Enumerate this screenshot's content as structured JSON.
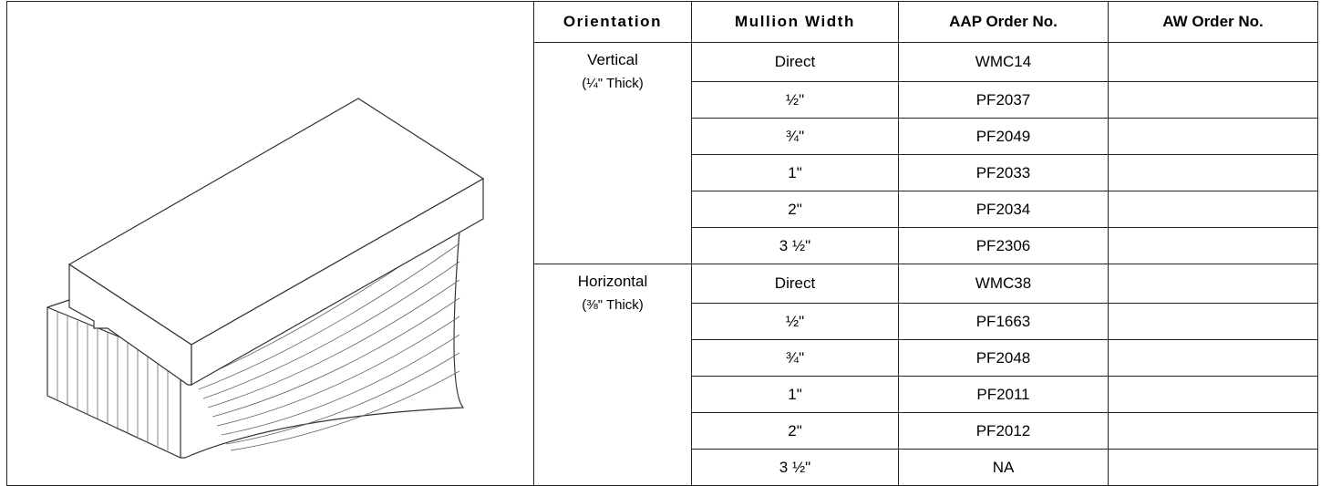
{
  "table": {
    "header": [
      "Orientation",
      "Mullion Width",
      "AAP Order No.",
      "AW Order No."
    ],
    "groups": [
      {
        "orientation": "Vertical",
        "thickness": "(¼\" Thick)",
        "rows": [
          [
            "Direct",
            "WMC14"
          ],
          [
            "½\"",
            "PF2037"
          ],
          [
            "¾\"",
            "PF2049"
          ],
          [
            "1\"",
            "PF2033"
          ],
          [
            "2\"",
            "PF2034"
          ],
          [
            "3 ½\"",
            "PF2306"
          ]
        ]
      },
      {
        "orientation": "Horizontal",
        "thickness": "(⅜\" Thick)",
        "rows": [
          [
            "Direct",
            "WMC38"
          ],
          [
            "½\"",
            "PF1663"
          ],
          [
            "¾\"",
            "PF2048"
          ],
          [
            "1\"",
            "PF2011"
          ],
          [
            "2\"",
            "PF2012"
          ],
          [
            "3 ½\"",
            "NA"
          ]
        ]
      }
    ]
  }
}
